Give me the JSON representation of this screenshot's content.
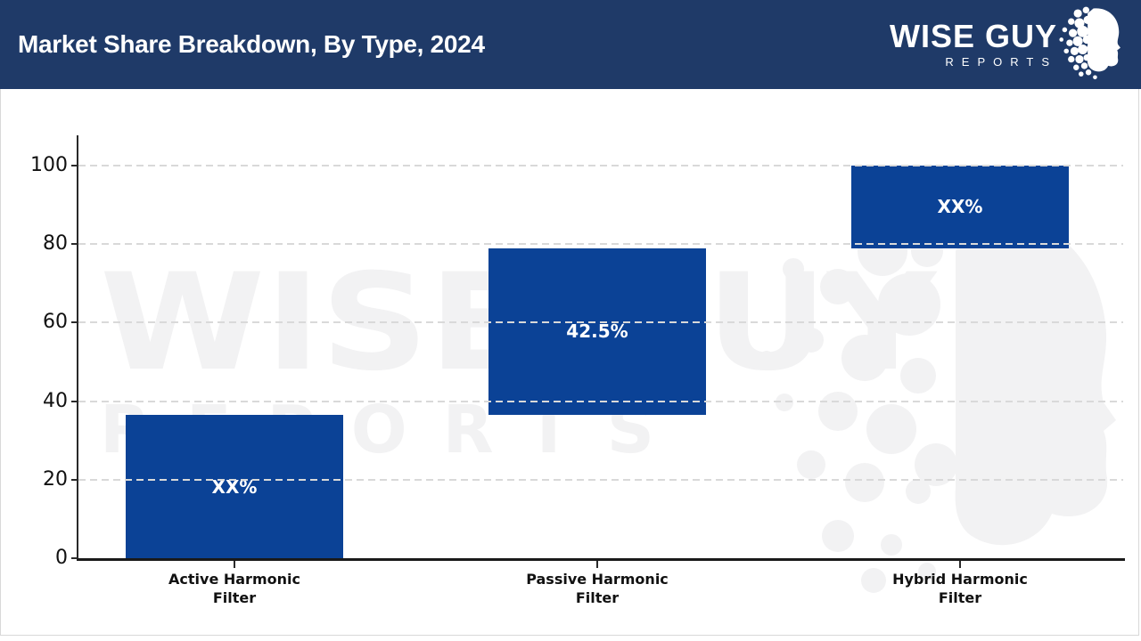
{
  "header": {
    "title": "Market Share Breakdown, By Type, 2024",
    "bg_color": "#1f3a68"
  },
  "logo": {
    "line1": "WISE GUY",
    "line2": "REPORTS"
  },
  "watermark": {
    "line1": "WISE GUY",
    "line2": "REPORTS"
  },
  "chart_data": {
    "type": "bar",
    "subtype": "waterfall-stacked",
    "title": "Market Share Breakdown, By Type, 2024",
    "xlabel": "",
    "ylabel": "",
    "ylim": [
      0,
      100
    ],
    "yticks": [
      0,
      20,
      40,
      60,
      80,
      100
    ],
    "grid": {
      "show": true,
      "style": "dashed",
      "color": "#d9d9d9"
    },
    "legend": "none",
    "bar_color": "#0b4296",
    "label_color": "#ffffff",
    "categories": [
      "Active Harmonic Filter",
      "Passive Harmonic Filter",
      "Hybrid Harmonic Filter"
    ],
    "category_lines": [
      [
        "Active Harmonic",
        "Filter"
      ],
      [
        "Passive Harmonic",
        "Filter"
      ],
      [
        "Hybrid Harmonic",
        "Filter"
      ]
    ],
    "values": [
      36.5,
      42.5,
      21
    ],
    "segments": [
      {
        "category": "Active Harmonic Filter",
        "start": 0,
        "end": 36.5,
        "label": "XX%"
      },
      {
        "category": "Passive Harmonic Filter",
        "start": 36.5,
        "end": 79,
        "label": "42.5%"
      },
      {
        "category": "Hybrid Harmonic Filter",
        "start": 79,
        "end": 100,
        "label": "XX%"
      }
    ]
  }
}
